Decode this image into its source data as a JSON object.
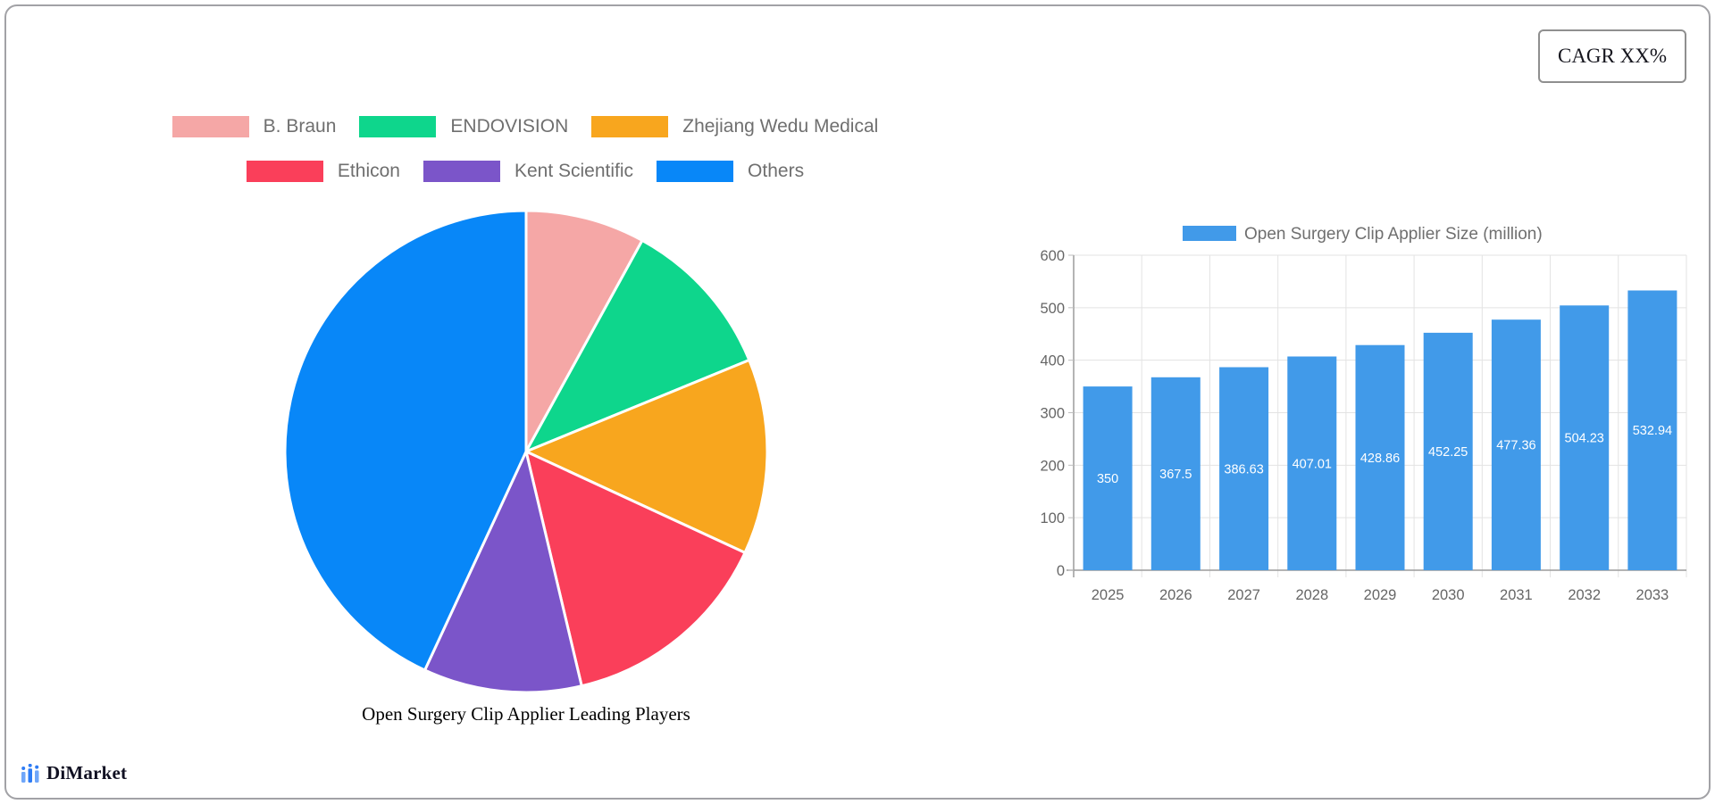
{
  "header": {
    "cagr_label": "CAGR XX%"
  },
  "footer": {
    "brand": "DiMarket"
  },
  "colors": {
    "frame_border": "#A2A2A6",
    "grid": "#E3E3E3",
    "axis": "#9C9C9C",
    "tick_text": "#666666",
    "legend_text": "#6F6F6F"
  },
  "chart_data": [
    {
      "type": "pie",
      "title": "Open Surgery Clip Applier Leading Players",
      "legend_position": "top",
      "start_angle_deg": 0,
      "direction": "clockwise",
      "slices": [
        {
          "label": "B. Braun",
          "value_pct": 8.0,
          "color": "#F5A7A6"
        },
        {
          "label": "ENDOVISION",
          "value_pct": 10.8,
          "color": "#0ED68C"
        },
        {
          "label": "Zhejiang Wedu Medical",
          "value_pct": 13.1,
          "color": "#F8A61E"
        },
        {
          "label": "Ethicon",
          "value_pct": 14.4,
          "color": "#FA3F5A"
        },
        {
          "label": "Kent Scientific",
          "value_pct": 10.6,
          "color": "#7B55C9"
        },
        {
          "label": "Others",
          "value_pct": 43.1,
          "color": "#0887F8"
        }
      ],
      "legend_rows": [
        [
          "B. Braun",
          "ENDOVISION",
          "Zhejiang Wedu Medical"
        ],
        [
          "Ethicon",
          "Kent Scientific",
          "Others"
        ]
      ]
    },
    {
      "type": "bar",
      "series_label": "Open Surgery Clip Applier Size (million)",
      "categories": [
        "2025",
        "2026",
        "2027",
        "2028",
        "2029",
        "2030",
        "2031",
        "2032",
        "2033"
      ],
      "values": [
        350,
        367.5,
        386.63,
        407.01,
        428.86,
        452.25,
        477.36,
        504.23,
        532.94
      ],
      "value_labels": [
        "350",
        "367.5",
        "386.63",
        "407.01",
        "428.86",
        "452.25",
        "477.36",
        "504.23",
        "532.94"
      ],
      "bar_color": "#419AE9",
      "ylim": [
        0,
        600
      ],
      "yticks": [
        0,
        100,
        200,
        300,
        400,
        500,
        600
      ],
      "grid": true,
      "legend_position": "top"
    }
  ]
}
